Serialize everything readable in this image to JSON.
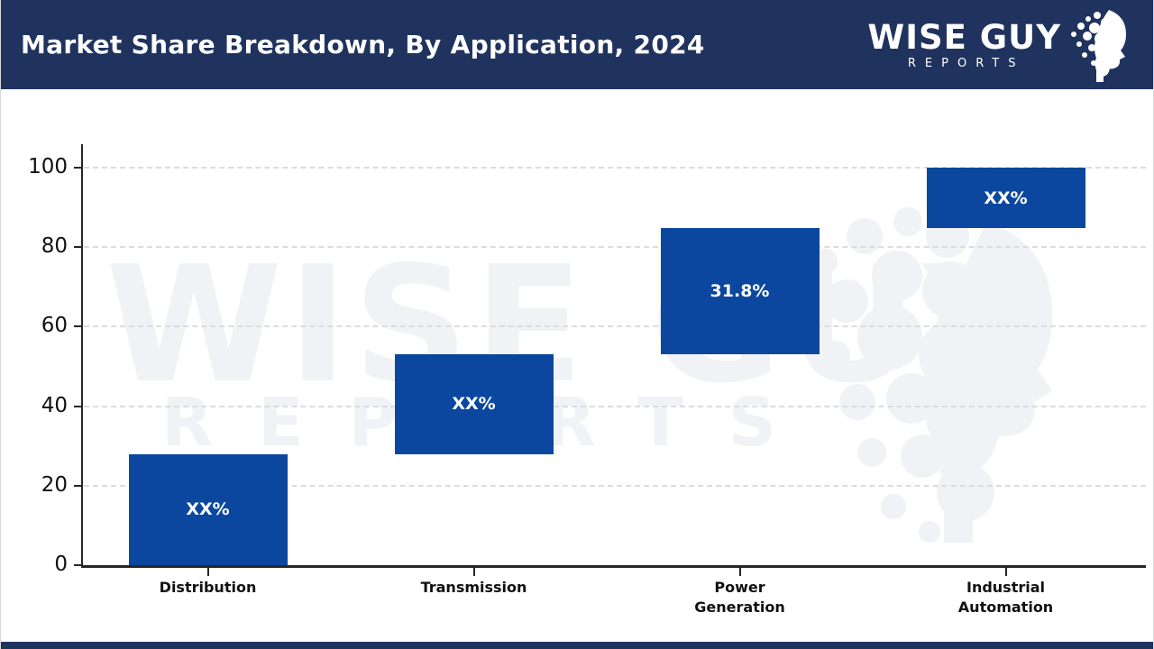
{
  "header": {
    "title": "Market Share Breakdown, By Application, 2024",
    "logo": {
      "line1": "WISE GUY",
      "line2": "REPORTS"
    }
  },
  "watermark": {
    "line1": "WISE GUY",
    "line2": "REPORTS"
  },
  "colors": {
    "header_bg": "#20335f",
    "bar": "#0b479f",
    "bar_label": "#ffffff",
    "grid": "#dcdcdc",
    "axis": "#262626",
    "tick_text": "#111111",
    "watermark": "#f1f2f5"
  },
  "chart_data": {
    "type": "bar",
    "subtype": "floating-waterfall",
    "title": "Market Share Breakdown, By Application, 2024",
    "categories": [
      "Distribution",
      "Transmission",
      "Power Generation",
      "Industrial Automation"
    ],
    "segments": [
      {
        "category": "Distribution",
        "start": 0,
        "end": 28,
        "label": "XX%"
      },
      {
        "category": "Transmission",
        "start": 28,
        "end": 53,
        "label": "XX%"
      },
      {
        "category": "Power Generation",
        "start": 53,
        "end": 84.8,
        "label": "31.8%"
      },
      {
        "category": "Industrial Automation",
        "start": 84.8,
        "end": 100,
        "label": "XX%"
      }
    ],
    "xlabel": "",
    "ylabel": "",
    "ylim": [
      0,
      100
    ],
    "yticks": [
      0,
      20,
      40,
      60,
      80,
      100
    ],
    "grid": "horizontal-dashed",
    "legend": "none"
  }
}
